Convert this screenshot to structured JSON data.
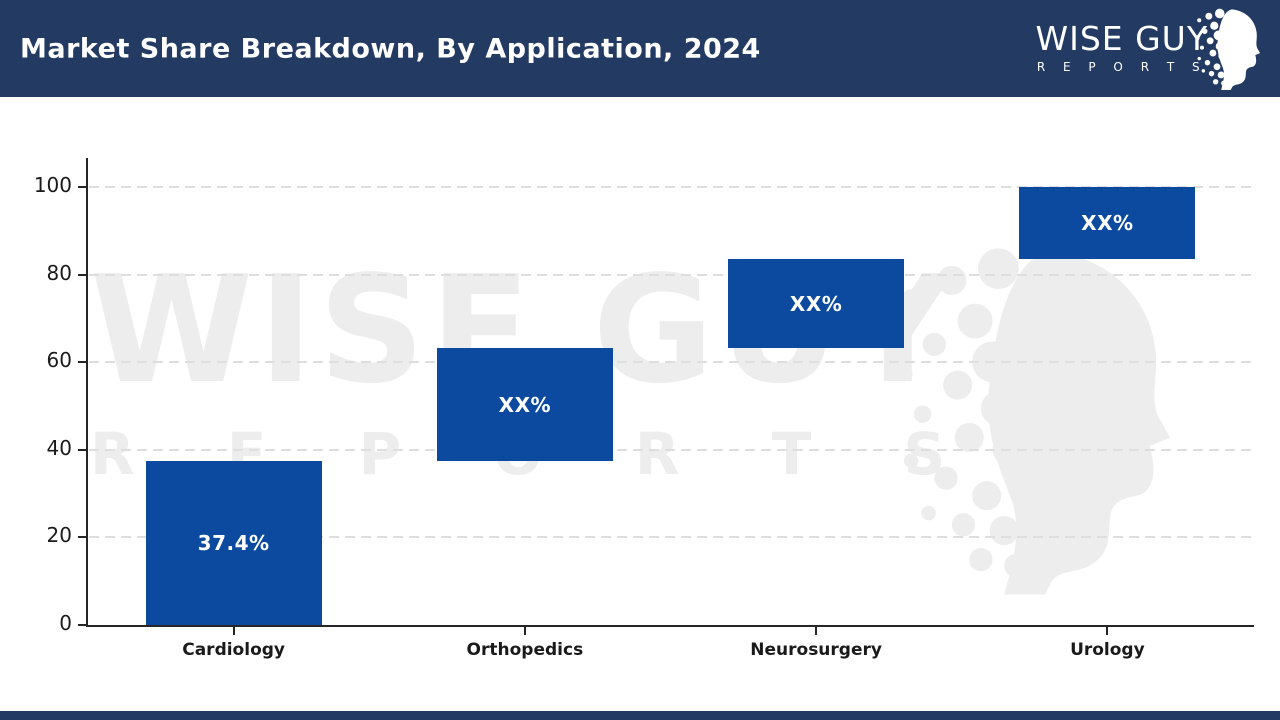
{
  "header": {
    "title": "Market Share Breakdown, By Application, 2024",
    "background_color": "#233A63",
    "logo": {
      "primary": "WISE GUY",
      "secondary": "R E P O R T S"
    }
  },
  "watermark": {
    "primary": "WISE GUY",
    "secondary": "R E P O R T S"
  },
  "footer": {
    "background_color": "#233A63"
  },
  "colors": {
    "bar": "#0B4A9E",
    "bar_label": "#FFFFFF",
    "axis": "#262626",
    "gridline": "#DEDEDE",
    "watermark": "#EDEDED"
  },
  "chart_data": {
    "type": "bar",
    "subtype": "floating-waterfall-segments",
    "title": "Market Share Breakdown, By Application, 2024",
    "categories": [
      "Cardiology",
      "Orthopedics",
      "Neurosurgery",
      "Urology"
    ],
    "segments": [
      {
        "category": "Cardiology",
        "start": 0,
        "end": 37.4,
        "label": "37.4%"
      },
      {
        "category": "Orthopedics",
        "start": 37.4,
        "end": 63.2,
        "label": "XX%"
      },
      {
        "category": "Neurosurgery",
        "start": 63.2,
        "end": 83.6,
        "label": "XX%"
      },
      {
        "category": "Urology",
        "start": 83.6,
        "end": 100,
        "label": "XX%"
      }
    ],
    "xlabel": "",
    "ylabel": "",
    "ylim": [
      0,
      107
    ],
    "yticks": [
      0,
      20,
      40,
      60,
      80,
      100
    ],
    "grid": "horizontal-dashed",
    "legend": "none",
    "bar_color": "#0B4A9E"
  }
}
